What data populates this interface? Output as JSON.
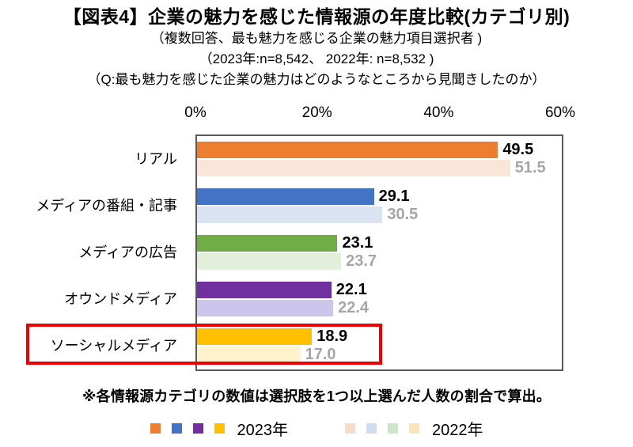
{
  "header": {
    "title": "【図表4】企業の魅力を感じた情報源の年度比較(カテゴリ別)",
    "subtitle1": "（複数回答、最も魅力を感じる企業の魅力項目選択者 )",
    "subtitle2": "（2023年:n=8,542、 2022年: n=8,532 )",
    "subtitle3": "（Q:最も魅力を感じた企業の魅力はどのようなところから見聞きしたのか）"
  },
  "footnote": "※各情報源カテゴリの数値は選択肢を1つ以上選んだ人数の割合で算出。",
  "chart_data": {
    "type": "bar",
    "orientation": "horizontal",
    "categories": [
      "リアル",
      "メディアの番組・記事",
      "メディアの広告",
      "オウンドメディア",
      "ソーシャルメディア"
    ],
    "series": [
      {
        "name": "2023年",
        "values": [
          49.5,
          29.1,
          23.1,
          22.1,
          18.9
        ],
        "bar_colors": [
          "#ED7D31",
          "#4472C4",
          "#70AD47",
          "#7030A0",
          "#FFC000"
        ],
        "value_label_color": "#000000"
      },
      {
        "name": "2022年",
        "values": [
          51.5,
          30.5,
          23.7,
          22.4,
          17.0
        ],
        "bar_colors": [
          "#FAE6D9",
          "#DAE3F2",
          "#E3EFDB",
          "#CDC6EC",
          "#FFF3CE"
        ],
        "value_label_color": "#A6A6A6"
      }
    ],
    "x_ticks": [
      "0%",
      "20%",
      "40%",
      "60%"
    ],
    "xlim": [
      0,
      60
    ],
    "grid": false,
    "plot_border_color": "#595959",
    "highlighted_category": "ソーシャルメディア",
    "highlight_color": "#EE0000",
    "legend_position": "bottom"
  },
  "legend": {
    "groups": [
      {
        "label": "2023年",
        "swatches": [
          "#ED7D31",
          "#4472C4",
          "#7030A0",
          "#FFC000"
        ]
      },
      {
        "label": "2022年",
        "swatches": [
          "#F5DCCD",
          "#CFDCEF",
          "#CFE5CB",
          "#F9E4BB"
        ]
      }
    ]
  }
}
